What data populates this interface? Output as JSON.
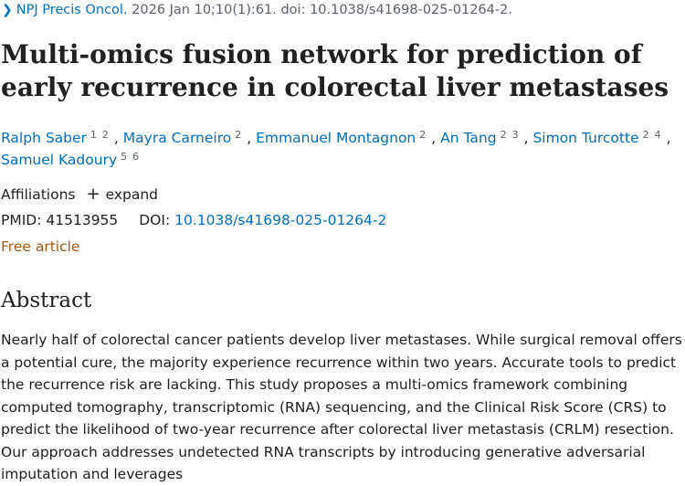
{
  "citation": {
    "journal": "NPJ Precis Oncol.",
    "details": " 2026 Jan 10;10(1):61. doi: 10.1038/s41698-025-01264-2."
  },
  "title": "Multi-omics fusion network for prediction of early recurrence in colorectal liver metastases",
  "authors": [
    {
      "name": "Ralph Saber",
      "affils": [
        "1",
        "2"
      ],
      "sep": ","
    },
    {
      "name": "Mayra Carneiro",
      "affils": [
        "2"
      ],
      "sep": ","
    },
    {
      "name": "Emmanuel Montagnon",
      "affils": [
        "2"
      ],
      "sep": ","
    },
    {
      "name": "An Tang",
      "affils": [
        "2",
        "3"
      ],
      "sep": ","
    },
    {
      "name": "Simon Turcotte",
      "affils": [
        "2",
        "4"
      ],
      "sep": ","
    },
    {
      "name": "Samuel Kadoury",
      "affils": [
        "5",
        "6"
      ],
      "sep": ""
    }
  ],
  "affiliations": {
    "label": "Affiliations",
    "toggle_icon": "plus-icon",
    "toggle_label": "expand"
  },
  "ids": {
    "pmid_label": "PMID:",
    "pmid": "41513955",
    "doi_label": "DOI:",
    "doi": "10.1038/s41698-025-01264-2"
  },
  "free_article": "Free article",
  "abstract": {
    "heading": "Abstract",
    "text": "Nearly half of colorectal cancer patients develop liver metastases. While surgical removal offers a potential cure, the majority experience recurrence within two years. Accurate tools to predict the recurrence risk are lacking. This study proposes a multi-omics framework combining computed tomography, transcriptomic (RNA) sequencing, and the Clinical Risk Score (CRS) to predict the likelihood of two-year recurrence after colorectal liver metastasis (CRLM) resection. Our approach addresses undetected RNA transcripts by introducing generative adversarial imputation and leverages"
  },
  "colors": {
    "link": "#0071bc",
    "free_article": "#a35a11",
    "text": "#212121"
  }
}
